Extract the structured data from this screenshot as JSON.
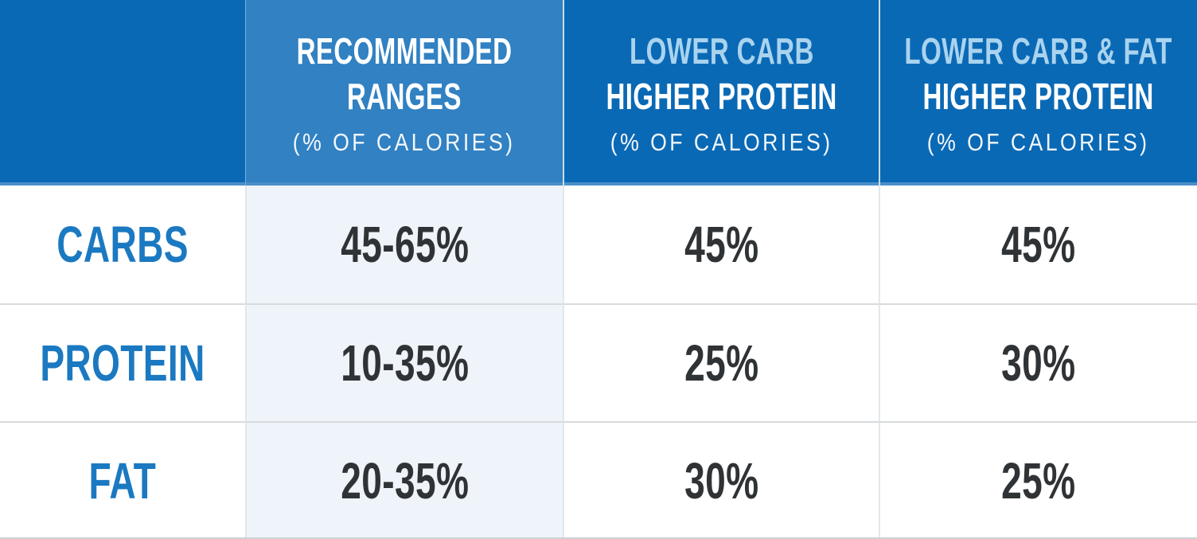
{
  "table": {
    "header": {
      "columns": [
        {
          "title_lines": [],
          "subtitle": ""
        },
        {
          "title_lines": [
            "RECOMMENDED",
            "RANGES"
          ],
          "subtitle": "(% OF CALORIES)"
        },
        {
          "title_lines": [
            "LOWER CARB",
            "HIGHER PROTEIN"
          ],
          "subtitle": "(% OF CALORIES)"
        },
        {
          "title_lines": [
            "LOWER CARB & FAT",
            "HIGHER PROTEIN"
          ],
          "subtitle": "(% OF CALORIES)"
        }
      ]
    },
    "rows": [
      {
        "label": "CARBS",
        "values": [
          "45-65%",
          "45%",
          "45%"
        ]
      },
      {
        "label": "PROTEIN",
        "values": [
          "10-35%",
          "25%",
          "30%"
        ]
      },
      {
        "label": "FAT",
        "values": [
          "20-35%",
          "30%",
          "25%"
        ]
      }
    ]
  },
  "colors": {
    "header_dark_blue": "#0a69b5",
    "header_light_blue": "#3181c3",
    "header_accent_text": "#a9d3ee",
    "body_shaded_column": "#eef4f9",
    "row_label_blue": "#1b79c1",
    "value_text": "#303336",
    "divider": "#d7dbdd"
  },
  "chart_data": {
    "type": "table",
    "title": "Macronutrient percentages of calories by diet approach",
    "column_headers": [
      "",
      "RECOMMENDED RANGES (% OF CALORIES)",
      "LOWER CARB HIGHER PROTEIN (% OF CALORIES)",
      "LOWER CARB & FAT HIGHER PROTEIN (% OF CALORIES)"
    ],
    "row_headers": [
      "CARBS",
      "PROTEIN",
      "FAT"
    ],
    "cells": [
      [
        "45-65%",
        "45%",
        "45%"
      ],
      [
        "10-35%",
        "25%",
        "30%"
      ],
      [
        "20-35%",
        "30%",
        "25%"
      ]
    ]
  }
}
